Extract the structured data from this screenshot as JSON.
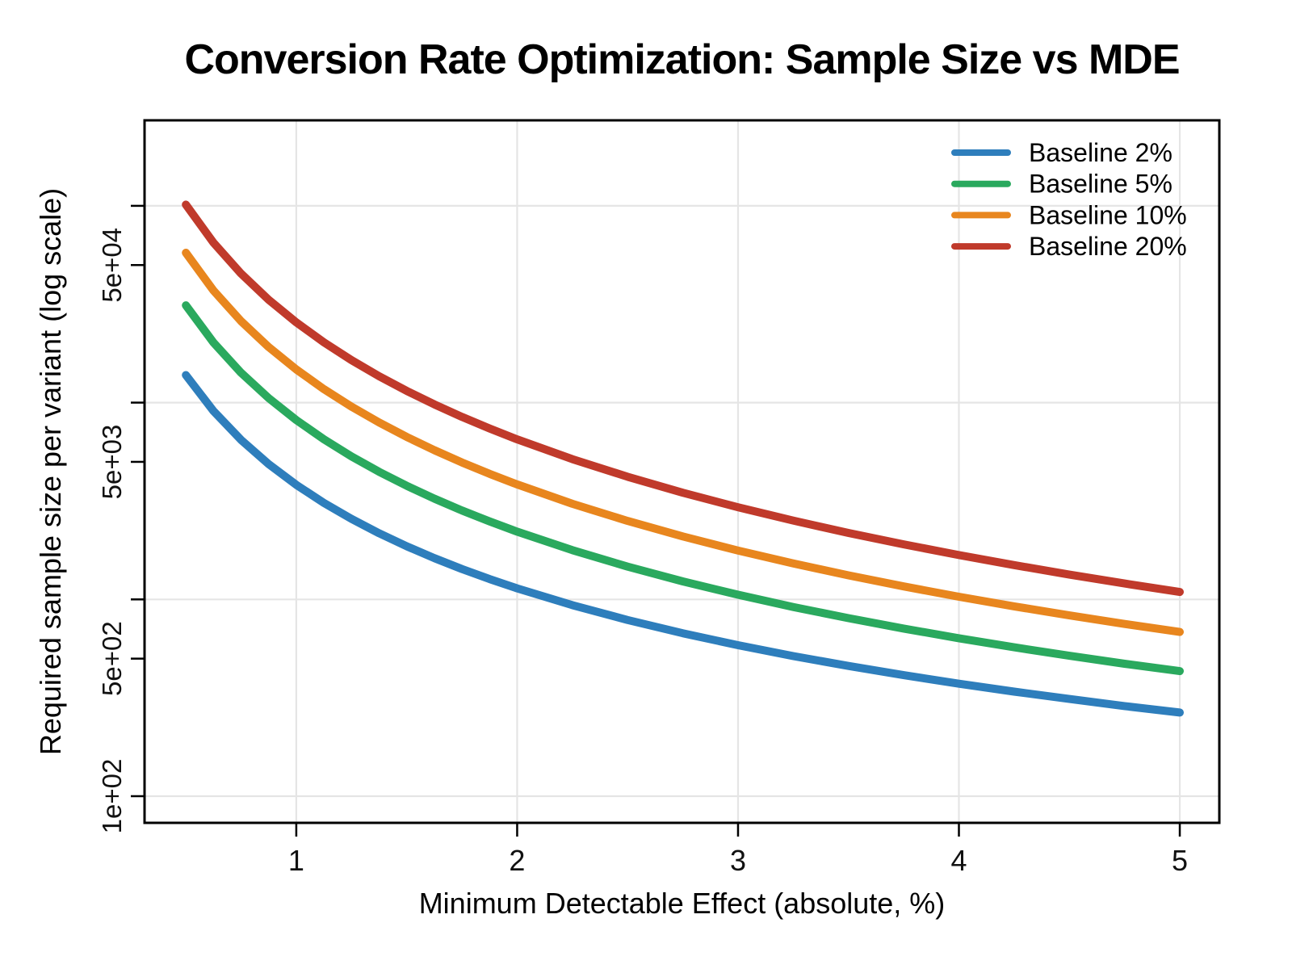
{
  "chart_data": {
    "type": "line",
    "title": "Conversion Rate Optimization: Sample Size vs MDE",
    "xlabel": "Minimum Detectable Effect (absolute, %)",
    "ylabel": "Required sample size per variant (log scale)",
    "x_scale": "linear",
    "y_scale": "log",
    "grid": true,
    "grid_color": "#e5e5e5",
    "frame_color": "#000000",
    "legend_position": "top-right",
    "x_range": [
      0.313,
      5.179
    ],
    "y_range": [
      73.2,
      272000
    ],
    "x_ticks": [
      {
        "value": 1,
        "label": "1"
      },
      {
        "value": 2,
        "label": "2"
      },
      {
        "value": 3,
        "label": "3"
      },
      {
        "value": 4,
        "label": "4"
      },
      {
        "value": 5,
        "label": "5"
      }
    ],
    "y_ticks": [
      {
        "value": 100,
        "label": "1e+02"
      },
      {
        "value": 500,
        "label": "5e+02"
      },
      {
        "value": 1000,
        "label": ""
      },
      {
        "value": 5000,
        "label": "5e+03"
      },
      {
        "value": 10000,
        "label": ""
      },
      {
        "value": 50000,
        "label": "5e+04"
      },
      {
        "value": 100000,
        "label": ""
      }
    ],
    "x_gridlines": [
      1,
      2,
      3,
      4,
      5
    ],
    "y_gridlines": [
      100,
      1000,
      10000,
      100000
    ],
    "x": [
      0.5,
      0.625,
      0.75,
      0.875,
      1.0,
      1.125,
      1.25,
      1.375,
      1.5,
      1.625,
      1.75,
      1.875,
      2.0,
      2.25,
      2.5,
      2.75,
      3.0,
      3.25,
      3.5,
      3.75,
      4.0,
      4.25,
      4.5,
      4.75,
      5.0
    ],
    "series": [
      {
        "name": "Baseline 2%",
        "color": "#2e7ebc",
        "values": [
          13806,
          9074,
          6467,
          4872,
          3822,
          3093,
          2564,
          2168,
          1862,
          1621,
          1427,
          1269,
          1138,
          935,
          786,
          673,
          585,
          515,
          459,
          412,
          373,
          340,
          312,
          287,
          266
        ]
      },
      {
        "name": "Baseline 5%",
        "color": "#2aa95e",
        "values": [
          31232,
          20211,
          14191,
          10539,
          8155,
          6512,
          5329,
          4450,
          3777,
          3251,
          2831,
          2490,
          2209,
          1779,
          1468,
          1235,
          1056,
          915,
          803,
          711,
          635,
          571,
          517,
          471,
          432
        ]
      },
      {
        "name": "Baseline 10%",
        "color": "#e8861e",
        "values": [
          57760,
          37164,
          25946,
          19163,
          14748,
          11713,
          9536,
          7922,
          6690,
          5729,
          4964,
          4346,
          3838,
          3062,
          2504,
          2089,
          1771,
          1523,
          1325,
          1164,
          1032,
          922,
          829,
          750,
          683
        ]
      },
      {
        "name": "Baseline 20%",
        "color": "#c03a2b",
        "values": [
          101400,
          65044,
          45272,
          33335,
          25580,
          20256,
          16443,
          13619,
          11469,
          9793,
          8463,
          7388,
          6507,
          5163,
          4199,
          3485,
          2940,
          2515,
          2177,
          1904,
          1680,
          1494,
          1337,
          1204,
          1091
        ]
      }
    ]
  }
}
